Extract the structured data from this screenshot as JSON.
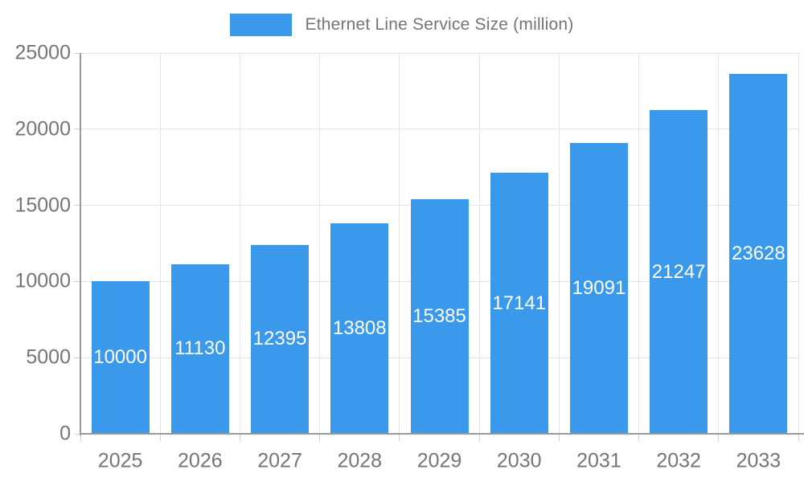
{
  "colors": {
    "bar": "#3B99EC",
    "label": "#757575",
    "grid": "#E4E4E4",
    "tick": "#D0D0D0",
    "axis_line": "#999999",
    "value_label": "#FFFFFF",
    "background": "#FFFFFF"
  },
  "legend": {
    "label": "Ethernet Line Service Size (million)"
  },
  "chart_data": {
    "type": "bar",
    "title": "Ethernet Line Service Size (million)",
    "categories": [
      "2025",
      "2026",
      "2027",
      "2028",
      "2029",
      "2030",
      "2031",
      "2032",
      "2033"
    ],
    "values": [
      10000,
      11130,
      12395,
      13808,
      15385,
      17141,
      19091,
      21247,
      23628
    ],
    "xlabel": "",
    "ylabel": "",
    "ylim": [
      0,
      25000
    ],
    "yticks": [
      0,
      5000,
      10000,
      15000,
      20000,
      25000
    ],
    "grid": true,
    "legend_position": "top",
    "value_label_style": "white-centered-inside-bar"
  }
}
